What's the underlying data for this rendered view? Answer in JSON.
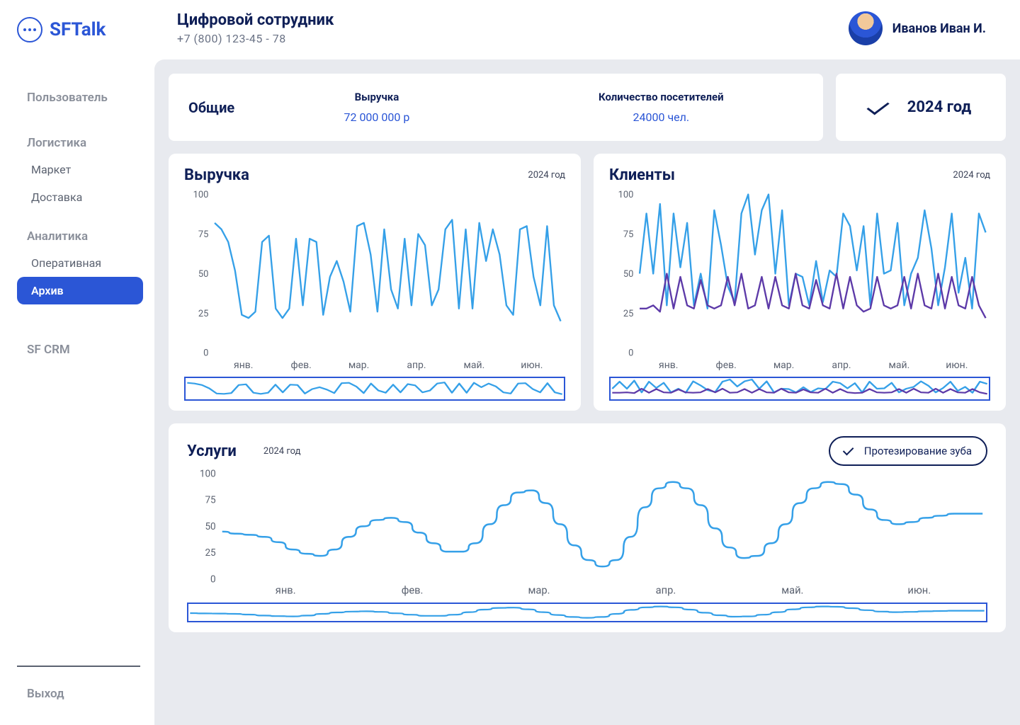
{
  "brand": "SFTalk",
  "header": {
    "title": "Цифровой сотрудник",
    "phone": "+7 (800) 123-45 - 78",
    "user_name": "Иванов Иван И."
  },
  "sidebar": {
    "user_header": "Пользователь",
    "sections": [
      {
        "header": "Логистика",
        "items": [
          "Маркет",
          "Доставка"
        ]
      },
      {
        "header": "Аналитика",
        "items": [
          "Оперативная",
          "Архив"
        ],
        "active_index": 1
      }
    ],
    "crm_header": "SF CRM",
    "exit": "Выход"
  },
  "kpi": {
    "overall": "Общие",
    "revenue_label": "Выручка",
    "revenue_value": "72 000 000 р",
    "visitors_label": "Количество посетителей",
    "visitors_value": "24000 чел."
  },
  "year_selector": "2024 год",
  "colors": {
    "primary": "#2b56d6",
    "series_blue": "#35a0e8",
    "series_purple": "#5d3aa8",
    "grid": "#e0e3ea",
    "text_dark": "#0f1f57",
    "text_muted": "#5b6270"
  },
  "revenue_chart": {
    "title": "Выручка",
    "year": "2024 год",
    "ylim": [
      0,
      100
    ],
    "yticks": [
      0,
      25,
      50,
      75,
      100
    ],
    "xticks": [
      "янв.",
      "фев.",
      "мар.",
      "апр.",
      "май.",
      "июн."
    ],
    "color": "#35a0e8",
    "line_width": 2.2,
    "values": [
      82,
      78,
      70,
      52,
      24,
      22,
      26,
      70,
      74,
      28,
      22,
      28,
      72,
      30,
      72,
      70,
      24,
      48,
      58,
      45,
      26,
      80,
      82,
      62,
      26,
      78,
      40,
      28,
      72,
      30,
      75,
      68,
      30,
      40,
      78,
      84,
      28,
      78,
      28,
      82,
      58,
      78,
      62,
      30,
      24,
      78,
      80,
      48,
      30,
      80,
      30,
      20
    ]
  },
  "clients_chart": {
    "title": "Клиенты",
    "year": "2024 год",
    "ylim": [
      0,
      100
    ],
    "yticks": [
      0,
      25,
      50,
      75,
      100
    ],
    "xticks": [
      "янв.",
      "фев.",
      "мар.",
      "апр.",
      "май.",
      "июн."
    ],
    "series": [
      {
        "name": "blue",
        "color": "#35a0e8",
        "line_width": 2.2,
        "values": [
          50,
          88,
          50,
          94,
          30,
          88,
          54,
          82,
          30,
          50,
          28,
          90,
          68,
          42,
          32,
          88,
          100,
          62,
          90,
          100,
          50,
          90,
          30,
          50,
          48,
          30,
          58,
          32,
          52,
          48,
          88,
          80,
          52,
          80,
          30,
          88,
          50,
          52,
          82,
          30,
          50,
          60,
          90,
          66,
          30,
          54,
          88,
          38,
          60,
          28,
          88,
          76
        ]
      },
      {
        "name": "purple",
        "color": "#5d3aa8",
        "line_width": 2.4,
        "values": [
          28,
          28,
          30,
          26,
          50,
          28,
          48,
          30,
          28,
          46,
          30,
          28,
          30,
          48,
          30,
          50,
          28,
          30,
          48,
          28,
          48,
          30,
          28,
          50,
          30,
          28,
          46,
          30,
          28,
          50,
          28,
          48,
          30,
          26,
          28,
          48,
          30,
          28,
          30,
          48,
          28,
          50,
          30,
          28,
          50,
          28,
          48,
          30,
          28,
          48,
          30,
          22
        ]
      }
    ]
  },
  "services_chart": {
    "title": "Услуги",
    "year": "2024 год",
    "dropdown_label": "Протезирование зуба",
    "ylim": [
      0,
      100
    ],
    "yticks": [
      0,
      25,
      50,
      75,
      100
    ],
    "xticks": [
      "янв.",
      "фев.",
      "мар.",
      "апр.",
      "май.",
      "июн."
    ],
    "color": "#35a0e8",
    "line_width": 2.4,
    "values": [
      45,
      43,
      42,
      40,
      35,
      28,
      24,
      22,
      28,
      40,
      50,
      56,
      58,
      54,
      44,
      34,
      26,
      26,
      34,
      52,
      70,
      82,
      84,
      72,
      52,
      32,
      18,
      12,
      18,
      40,
      68,
      86,
      92,
      86,
      70,
      48,
      30,
      20,
      22,
      34,
      52,
      72,
      86,
      92,
      90,
      80,
      66,
      56,
      52,
      54,
      58,
      60,
      62,
      62,
      62
    ]
  }
}
